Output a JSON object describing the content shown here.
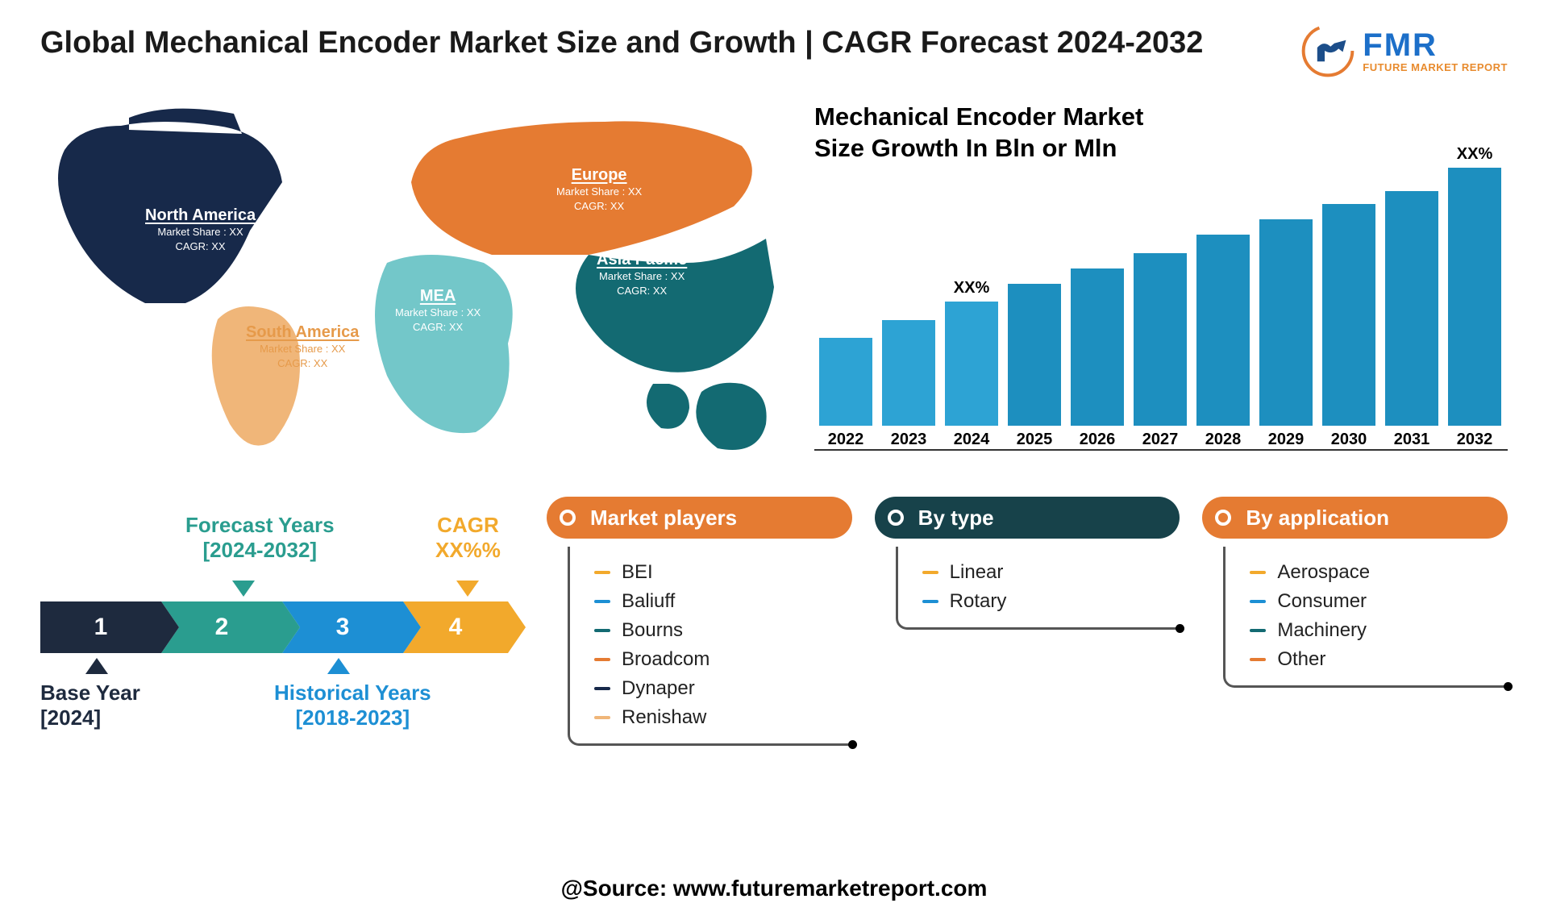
{
  "title": "Global Mechanical Encoder Market Size and Growth | CAGR Forecast 2024-2032",
  "logo": {
    "main": "FMR",
    "sub": "FUTURE MARKET REPORT"
  },
  "regions": {
    "north_america": {
      "name": "North America",
      "share": "Market Share : XX",
      "cagr": "CAGR: XX",
      "color": "#17294a"
    },
    "south_america": {
      "name": "South America",
      "share": "Market Share : XX",
      "cagr": "CAGR: XX",
      "color": "#f0b679"
    },
    "europe": {
      "name": "Europe",
      "share": "Market Share : XX",
      "cagr": "CAGR: XX",
      "color": "#e57b32"
    },
    "mea": {
      "name": "MEA",
      "share": "Market Share : XX",
      "cagr": "CAGR: XX",
      "color": "#73c7c9"
    },
    "asia_pacific": {
      "name": "Asia Pacific",
      "share": "Market Share : XX",
      "cagr": "CAGR: XX",
      "color": "#136a72"
    }
  },
  "chart": {
    "title": "Mechanical Encoder Market Size Growth In Bln or Mln",
    "bar_color": "#1d8fbf",
    "light_bar_color": "#2da3d4",
    "years": [
      "2022",
      "2023",
      "2024",
      "2025",
      "2026",
      "2027",
      "2028",
      "2029",
      "2030",
      "2031",
      "2032"
    ],
    "heights_pct": [
      34,
      41,
      48,
      55,
      61,
      67,
      74,
      80,
      86,
      91,
      100
    ],
    "pct_labels": {
      "2": "XX%",
      "10": "XX%"
    }
  },
  "timeline": {
    "base": {
      "label": "Base Year",
      "value": "[2024]",
      "color": "#1e2a3e",
      "text_color": "#1e2a3e"
    },
    "forecast": {
      "label": "Forecast Years",
      "value": "[2024-2032]",
      "color": "#2a9d8f",
      "text_color": "#2a9d8f"
    },
    "hist": {
      "label": "Historical Years",
      "value": "[2018-2023]",
      "color": "#1d8fd4",
      "text_color": "#1d8fd4"
    },
    "cagr": {
      "label": "CAGR",
      "value": "XX%%",
      "color": "#f2a92c",
      "text_color": "#f2a92c"
    },
    "seg_nums": [
      "1",
      "2",
      "3",
      "4"
    ]
  },
  "columns": {
    "players": {
      "title": "Market players",
      "pill_color": "#e57b32",
      "items": [
        "BEI",
        "Baliuff",
        "Bourns",
        "Broadcom",
        "Dynaper",
        "Renishaw"
      ],
      "tick_colors": [
        "#f2a92c",
        "#1d8fd4",
        "#136a72",
        "#e57b32",
        "#17294a",
        "#f0b679"
      ]
    },
    "type": {
      "title": "By type",
      "pill_color": "#17424a",
      "items": [
        "Linear",
        "Rotary"
      ],
      "tick_colors": [
        "#f2a92c",
        "#1d8fd4"
      ]
    },
    "application": {
      "title": "By application",
      "pill_color": "#e57b32",
      "items": [
        "Aerospace",
        "Consumer",
        "Machinery",
        "Other"
      ],
      "tick_colors": [
        "#f2a92c",
        "#1d8fd4",
        "#136a72",
        "#e57b32"
      ]
    }
  },
  "source": "@Source: www.futuremarketreport.com"
}
